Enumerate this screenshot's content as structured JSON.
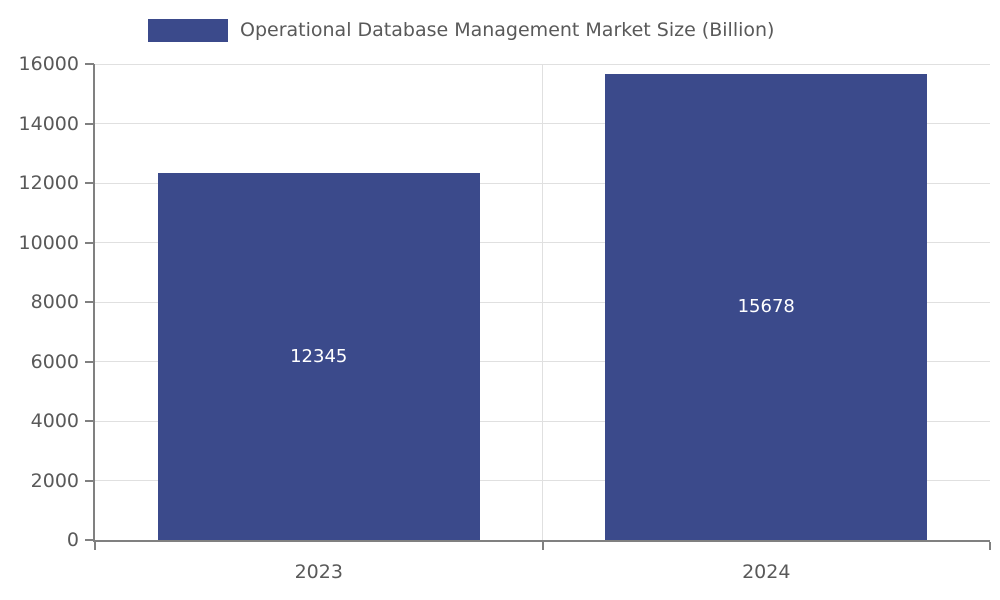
{
  "chart_data": {
    "type": "bar",
    "title": "Operational Database Management Market Size (Billion)",
    "categories": [
      "2023",
      "2024"
    ],
    "values": [
      12345,
      15678
    ],
    "series": [
      {
        "name": "Operational Database Management Market Size (Billion)",
        "values": [
          12345,
          15678
        ]
      }
    ],
    "value_labels": [
      "12345",
      "15678"
    ],
    "xlabel": "",
    "ylabel": "",
    "ylim": [
      0,
      16000
    ],
    "yticks": [
      0,
      2000,
      4000,
      6000,
      8000,
      10000,
      12000,
      14000,
      16000
    ],
    "grid": true,
    "legend_position": "top",
    "bar_color": "#3B4A8B",
    "value_label_color": "#ffffff",
    "axis_color": "#808080",
    "grid_color": "#e0e0e0",
    "text_color": "#595959"
  }
}
